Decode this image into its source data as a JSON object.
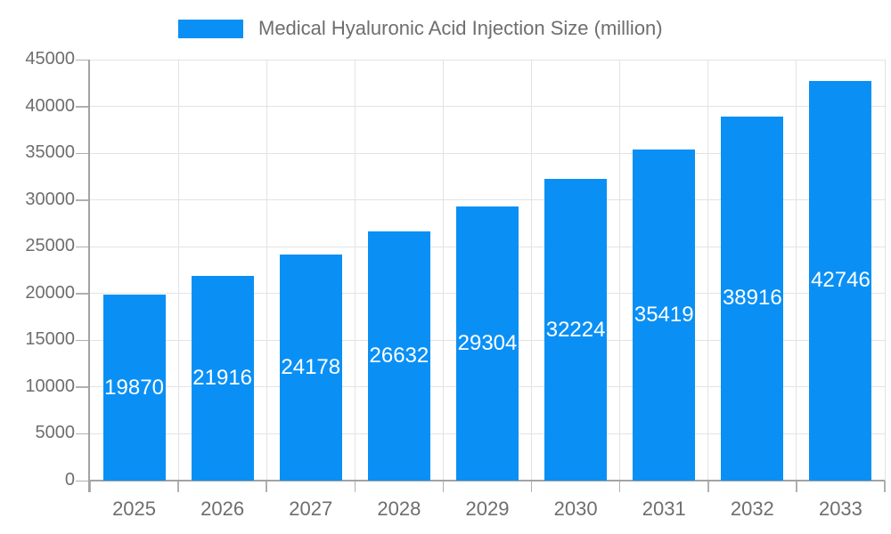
{
  "legend": {
    "label": "Medical Hyaluronic Acid Injection Size (million)"
  },
  "chart_data": {
    "type": "bar",
    "title": "Medical Hyaluronic Acid Injection Size (million)",
    "categories": [
      "2025",
      "2026",
      "2027",
      "2028",
      "2029",
      "2030",
      "2031",
      "2032",
      "2033"
    ],
    "values": [
      19870,
      21916,
      24178,
      26632,
      29304,
      32224,
      35419,
      38916,
      42746
    ],
    "xlabel": "",
    "ylabel": "",
    "ylim": [
      0,
      45000
    ],
    "yticks": [
      0,
      5000,
      10000,
      15000,
      20000,
      25000,
      30000,
      35000,
      40000,
      45000
    ],
    "grid": true,
    "legend_position": "top",
    "value_labels": "inside-center"
  },
  "colors": {
    "bar": "#0a90f5",
    "axis_label": "#6e6e6e",
    "legend_text": "#6e6e6e",
    "gridline": "#e3e3e3",
    "axis_line": "#a3a3a3",
    "tick": "#b0b0b0",
    "value_label": "#ffffff",
    "background": "#ffffff"
  }
}
